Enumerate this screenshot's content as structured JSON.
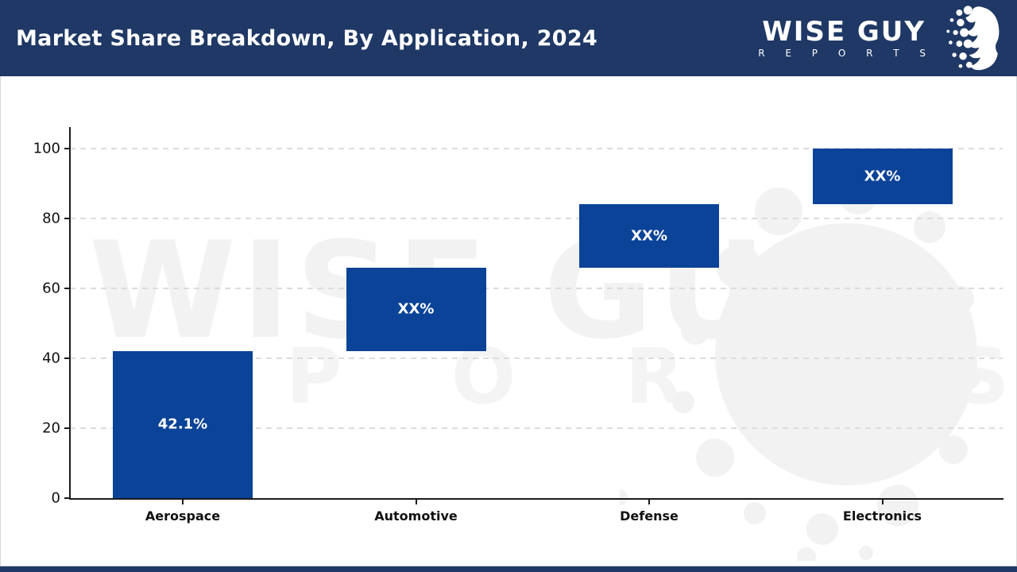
{
  "header": {
    "title": "Market Share Breakdown, By Application, 2024",
    "logo": {
      "line1": "WISE GUY",
      "line2": "R E P O R T S"
    }
  },
  "watermark": {
    "line1": "WISE GU",
    "line2": "P O R T S"
  },
  "colors": {
    "header_bg": "#1f3865",
    "footer_bg": "#1f3865",
    "bar": "#0a4397",
    "bar_label": "#ffffff",
    "grid": "#dcdcdc",
    "axis": "#1a1a1a",
    "watermark": "#f2f2f2"
  },
  "chart_data": {
    "type": "bar",
    "subtype": "waterfall",
    "title": "Market Share Breakdown, By Application, 2024",
    "categories": [
      "Aerospace",
      "Automotive",
      "Defense",
      "Electronics"
    ],
    "segments": [
      {
        "category": "Aerospace",
        "start": 0,
        "end": 42.1,
        "label": "42.1%"
      },
      {
        "category": "Automotive",
        "start": 42.1,
        "end": 66,
        "label": "XX%"
      },
      {
        "category": "Defense",
        "start": 66,
        "end": 84,
        "label": "XX%"
      },
      {
        "category": "Electronics",
        "start": 84,
        "end": 100,
        "label": "XX%"
      }
    ],
    "xlabel": "",
    "ylabel": "",
    "ylim": [
      0,
      105
    ],
    "yticks": [
      0,
      20,
      40,
      60,
      80,
      100
    ],
    "grid": "horizontal-dashed",
    "legend_position": "none"
  }
}
